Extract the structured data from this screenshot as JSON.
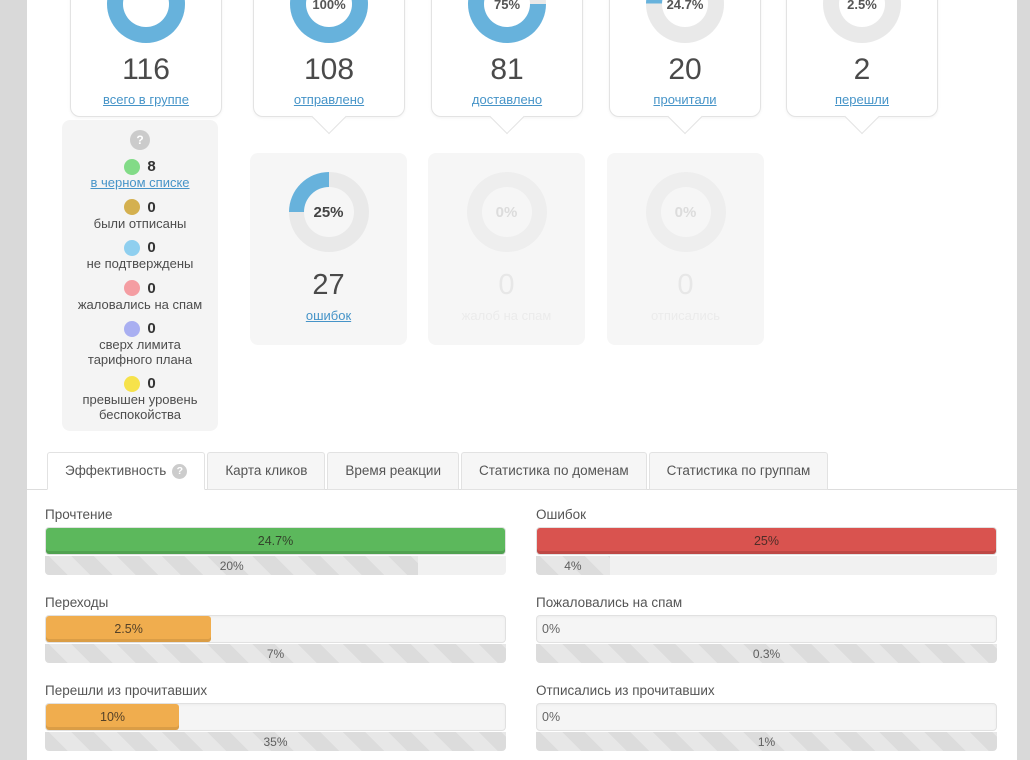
{
  "colors": {
    "accent_blue": "#67b2dc",
    "donut_empty": "#e9e9e9",
    "donut_muted": "#eeeeee",
    "bar_green": "#5cb85c",
    "bar_orange": "#f0ad4e",
    "bar_red": "#d9534f",
    "link": "#4694c8",
    "side_gutter": "#d9d9d9"
  },
  "funnel_cards": [
    {
      "value": "116",
      "label": "всего в группе",
      "percent": "",
      "fill": 1
    },
    {
      "value": "108",
      "label": "отправлено",
      "percent": "100%",
      "fill": 1
    },
    {
      "value": "81",
      "label": "доставлено",
      "percent": "75%",
      "fill": 0.75
    },
    {
      "value": "20",
      "label": "прочитали",
      "percent": "24.7%",
      "fill": 0.247
    },
    {
      "value": "2",
      "label": "перешли",
      "percent": "2.5%",
      "fill": 0.025
    }
  ],
  "legend": {
    "help_icon": "?",
    "items": [
      {
        "dot_color": "#82db87",
        "value": "8",
        "label": "в черном списке",
        "is_link": true
      },
      {
        "dot_color": "#d4b04f",
        "value": "0",
        "label": "были отписаны",
        "is_link": false
      },
      {
        "dot_color": "#8fcfef",
        "value": "0",
        "label": "не подтверждены",
        "is_link": false
      },
      {
        "dot_color": "#f49da2",
        "value": "0",
        "label": "жаловались на спам",
        "is_link": false
      },
      {
        "dot_color": "#a9aff1",
        "value": "0",
        "label": "сверх лимита тарифного плана",
        "is_link": false
      },
      {
        "dot_color": "#f6e24b",
        "value": "0",
        "label": "превышен уровень беспокойства",
        "is_link": false
      }
    ]
  },
  "secondary_cards": [
    {
      "percent": "25%",
      "value": "27",
      "label": "ошибок",
      "fill": 0.25,
      "muted": false
    },
    {
      "percent": "0%",
      "value": "0",
      "label": "жалоб на спам",
      "fill": 0,
      "muted": true
    },
    {
      "percent": "0%",
      "value": "0",
      "label": "отписались",
      "fill": 0,
      "muted": true
    }
  ],
  "tabs": [
    {
      "label": "Эффективность",
      "active": true,
      "help_icon": "?"
    },
    {
      "label": "Карта кликов",
      "active": false
    },
    {
      "label": "Время реакции",
      "active": false
    },
    {
      "label": "Статистика по доменам",
      "active": false
    },
    {
      "label": "Статистика по группам",
      "active": false
    }
  ],
  "metrics": {
    "left": [
      {
        "label": "Прочтение",
        "value_text": "24.7%",
        "value_width": 100,
        "color": "green",
        "bench_text": "20%",
        "bench_width": 81
      },
      {
        "label": "Переходы",
        "value_text": "2.5%",
        "value_width": 36,
        "color": "orange",
        "bench_text": "7%",
        "bench_width": 100
      },
      {
        "label": "Перешли из прочитавших",
        "value_text": "10%",
        "value_width": 29,
        "color": "orange",
        "bench_text": "35%",
        "bench_width": 100
      }
    ],
    "right": [
      {
        "label": "Ошибок",
        "value_text": "25%",
        "value_width": 100,
        "color": "red",
        "bench_text": "4%",
        "bench_width": 16
      },
      {
        "label": "Пожаловались на спам",
        "value_text": "0%",
        "value_width": 0,
        "color": "none",
        "bench_text": "0.3%",
        "bench_width": 100
      },
      {
        "label": "Отписались из прочитавших",
        "value_text": "0%",
        "value_width": 0,
        "color": "none",
        "bench_text": "1%",
        "bench_width": 100
      }
    ]
  }
}
